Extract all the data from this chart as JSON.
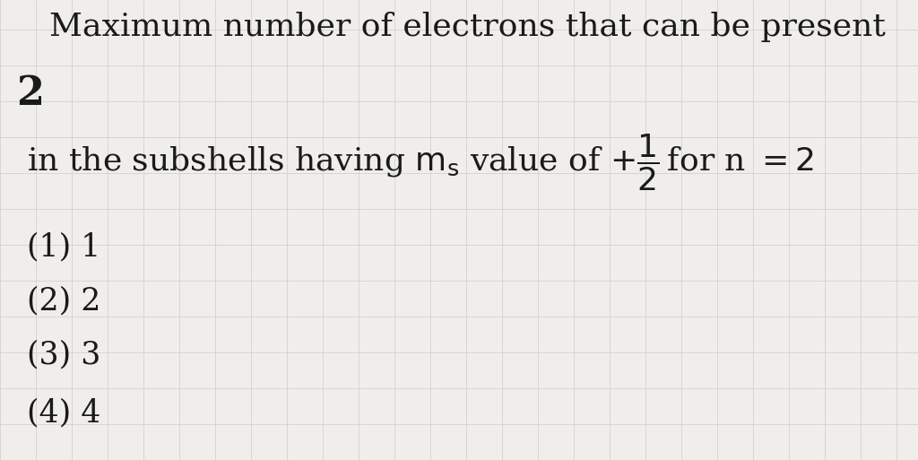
{
  "background_color": "#f0eeea",
  "grid_color": "#cccccc",
  "text_color": "#1a1a1a",
  "question_number": "2",
  "line1": "Maximum number of electrons that can be present",
  "options": [
    "(1) 1",
    "(2) 2",
    "(3) 3",
    "(4) 4"
  ],
  "font_size_main": 26,
  "font_size_options": 25,
  "font_size_question_num": 32,
  "fig_width": 10.24,
  "fig_height": 5.13,
  "dpi": 100
}
